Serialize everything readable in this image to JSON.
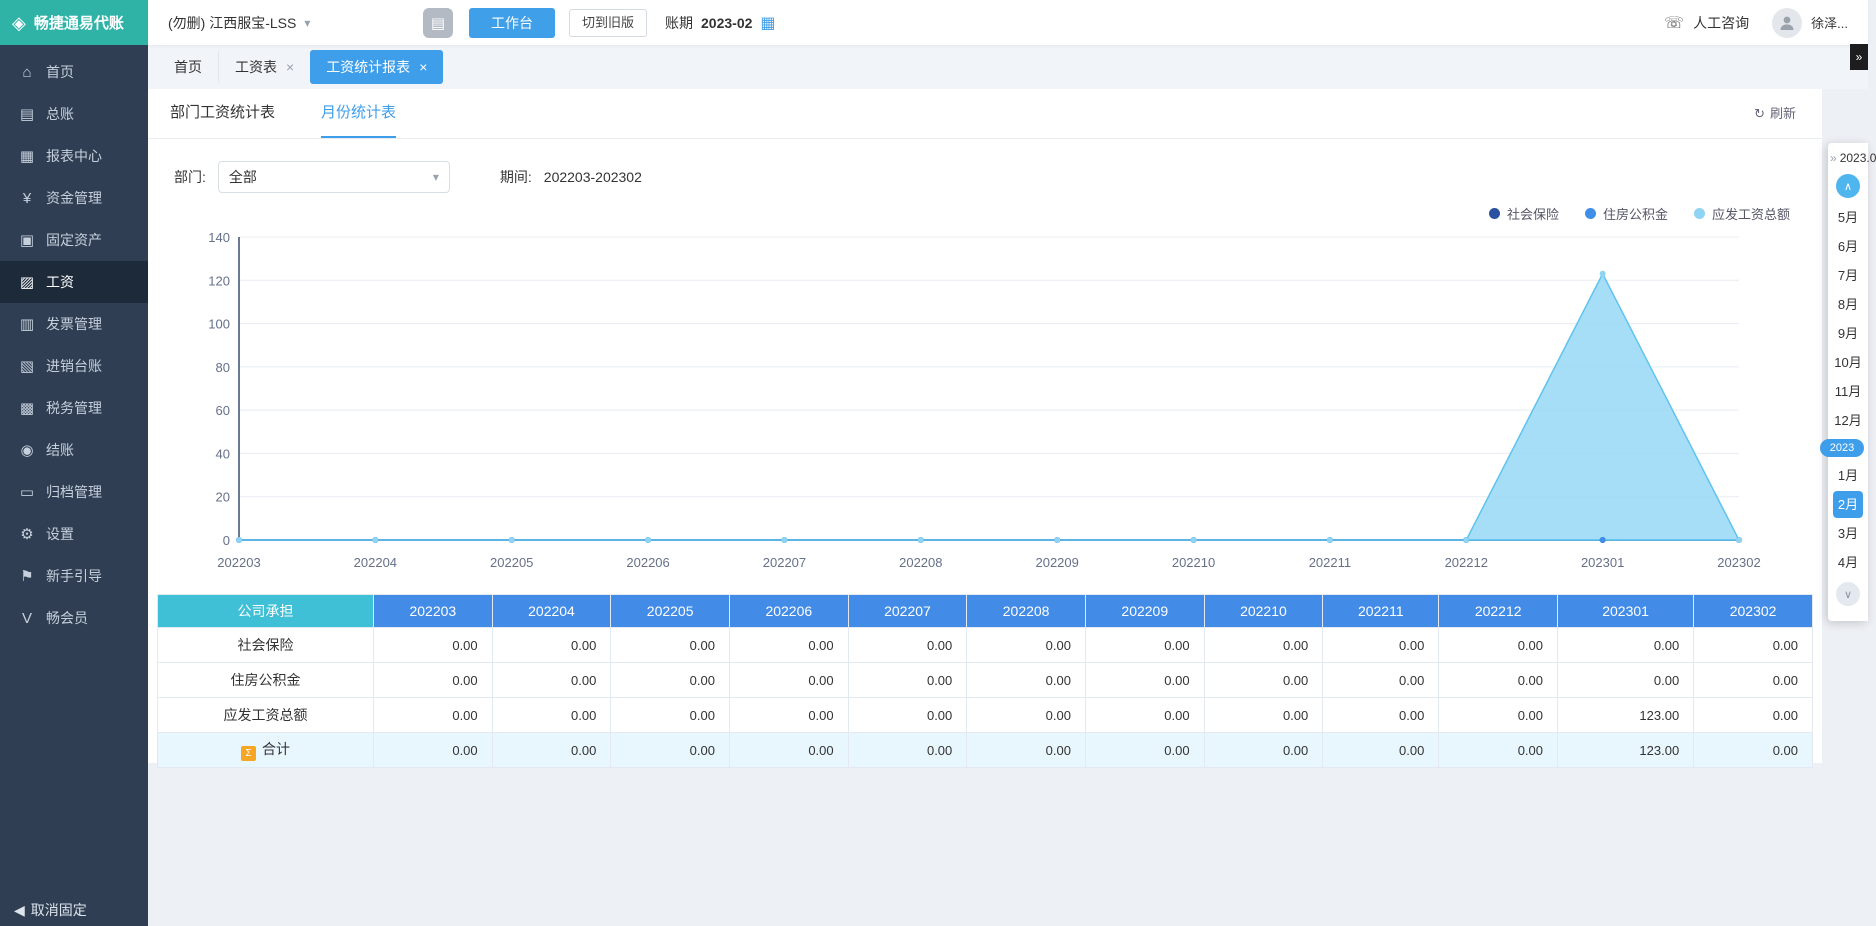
{
  "accent": "#3f9eea",
  "ui": {
    "close_glyph": "×",
    "caret_glyph": "▾"
  },
  "sidebar": {
    "logo": {
      "glyph": "◈",
      "text": "畅捷通易代账"
    },
    "items": [
      {
        "label": "首页",
        "icon": "home",
        "glyph": "⌂",
        "active": false
      },
      {
        "label": "总账",
        "icon": "general-ledger",
        "glyph": "▤",
        "active": false
      },
      {
        "label": "报表中心",
        "icon": "report-center",
        "glyph": "▦",
        "active": false
      },
      {
        "label": "资金管理",
        "icon": "funds",
        "glyph": "¥",
        "active": false
      },
      {
        "label": "固定资产",
        "icon": "fixed-assets",
        "glyph": "▣",
        "active": false
      },
      {
        "label": "工资",
        "icon": "salary",
        "glyph": "▨",
        "active": true
      },
      {
        "label": "发票管理",
        "icon": "invoice",
        "glyph": "▥",
        "active": false
      },
      {
        "label": "进销台账",
        "icon": "purchase-sales",
        "glyph": "▧",
        "active": false
      },
      {
        "label": "税务管理",
        "icon": "tax",
        "glyph": "▩",
        "active": false
      },
      {
        "label": "结账",
        "icon": "closing",
        "glyph": "◉",
        "active": false
      },
      {
        "label": "归档管理",
        "icon": "archive",
        "glyph": "▭",
        "active": false
      },
      {
        "label": "设置",
        "icon": "settings",
        "glyph": "⚙",
        "active": false
      },
      {
        "label": "新手引导",
        "icon": "guide",
        "glyph": "⚑",
        "active": false
      },
      {
        "label": "畅会员",
        "icon": "member",
        "glyph": "V",
        "active": false
      }
    ],
    "footer": {
      "glyph": "◀",
      "label": "取消固定"
    }
  },
  "topbar": {
    "company": "(勿删) 江西服宝-LSS",
    "notes_glyph": "▤",
    "workbench_button": "工作台",
    "switch_old_button": "切到旧版",
    "period_label": "账期",
    "period_value": "2023-02",
    "calendar_glyph": "▦",
    "consult_glyph": "☏",
    "consult_label": "人工咨询",
    "username": "徐泽...",
    "collapse_glyph": "»"
  },
  "tabs": [
    {
      "label": "首页",
      "closable": false,
      "active": false
    },
    {
      "label": "工资表",
      "closable": true,
      "active": false
    },
    {
      "label": "工资统计报表",
      "closable": true,
      "active": true
    }
  ],
  "report": {
    "subtabs": [
      {
        "label": "部门工资统计表",
        "active": false
      },
      {
        "label": "月份统计表",
        "active": true
      }
    ],
    "refresh_glyph": "↻",
    "refresh_label": "刷新",
    "filters": {
      "dept_label": "部门:",
      "dept_value": "全部",
      "period_label": "期间:",
      "period_value": "202203-202302"
    }
  },
  "chart_data": {
    "type": "area",
    "title": "",
    "x": [
      "202203",
      "202204",
      "202205",
      "202206",
      "202207",
      "202208",
      "202209",
      "202210",
      "202211",
      "202212",
      "202301",
      "202302"
    ],
    "series": [
      {
        "name": "社会保险",
        "color": "#2a52a0",
        "values": [
          0,
          0,
          0,
          0,
          0,
          0,
          0,
          0,
          0,
          0,
          0,
          0
        ]
      },
      {
        "name": "住房公积金",
        "color": "#3f8fe8",
        "values": [
          0,
          0,
          0,
          0,
          0,
          0,
          0,
          0,
          0,
          0,
          0,
          0
        ]
      },
      {
        "name": "应发工资总额",
        "color": "#8fd4f3",
        "fill": "rgba(150,216,246,0.85)",
        "stroke": "#5fc3ee",
        "values": [
          0,
          0,
          0,
          0,
          0,
          0,
          0,
          0,
          0,
          0,
          123,
          0
        ]
      }
    ],
    "ylim": [
      0,
      140
    ],
    "yticks": [
      0,
      20,
      40,
      60,
      80,
      100,
      120,
      140
    ],
    "grid": true,
    "legend_position": "top-right"
  },
  "table": {
    "header": [
      "公司承担",
      "202203",
      "202204",
      "202205",
      "202206",
      "202207",
      "202208",
      "202209",
      "202210",
      "202211",
      "202212",
      "202301",
      "202302"
    ],
    "rows": [
      {
        "label": "社会保险",
        "total": false,
        "values": [
          "0.00",
          "0.00",
          "0.00",
          "0.00",
          "0.00",
          "0.00",
          "0.00",
          "0.00",
          "0.00",
          "0.00",
          "0.00",
          "0.00"
        ]
      },
      {
        "label": "住房公积金",
        "total": false,
        "values": [
          "0.00",
          "0.00",
          "0.00",
          "0.00",
          "0.00",
          "0.00",
          "0.00",
          "0.00",
          "0.00",
          "0.00",
          "0.00",
          "0.00"
        ]
      },
      {
        "label": "应发工资总额",
        "total": false,
        "values": [
          "0.00",
          "0.00",
          "0.00",
          "0.00",
          "0.00",
          "0.00",
          "0.00",
          "0.00",
          "0.00",
          "0.00",
          "123.00",
          "0.00"
        ]
      },
      {
        "label": "合计",
        "total": true,
        "icon": "sum",
        "icon_glyph": "Σ",
        "values": [
          "0.00",
          "0.00",
          "0.00",
          "0.00",
          "0.00",
          "0.00",
          "0.00",
          "0.00",
          "0.00",
          "0.00",
          "123.00",
          "0.00"
        ]
      }
    ]
  },
  "month_panel": {
    "collapse_glyph": "»",
    "header": "2023.0",
    "up_glyph": "∧",
    "down_glyph": "∨",
    "items": [
      {
        "label": "5月"
      },
      {
        "label": "6月"
      },
      {
        "label": "7月"
      },
      {
        "label": "8月"
      },
      {
        "label": "9月"
      },
      {
        "label": "10月"
      },
      {
        "label": "11月"
      },
      {
        "label": "12月"
      },
      {
        "label": "2023",
        "badge": true
      },
      {
        "label": "1月"
      },
      {
        "label": "2月",
        "active": true
      },
      {
        "label": "3月"
      },
      {
        "label": "4月"
      }
    ]
  }
}
